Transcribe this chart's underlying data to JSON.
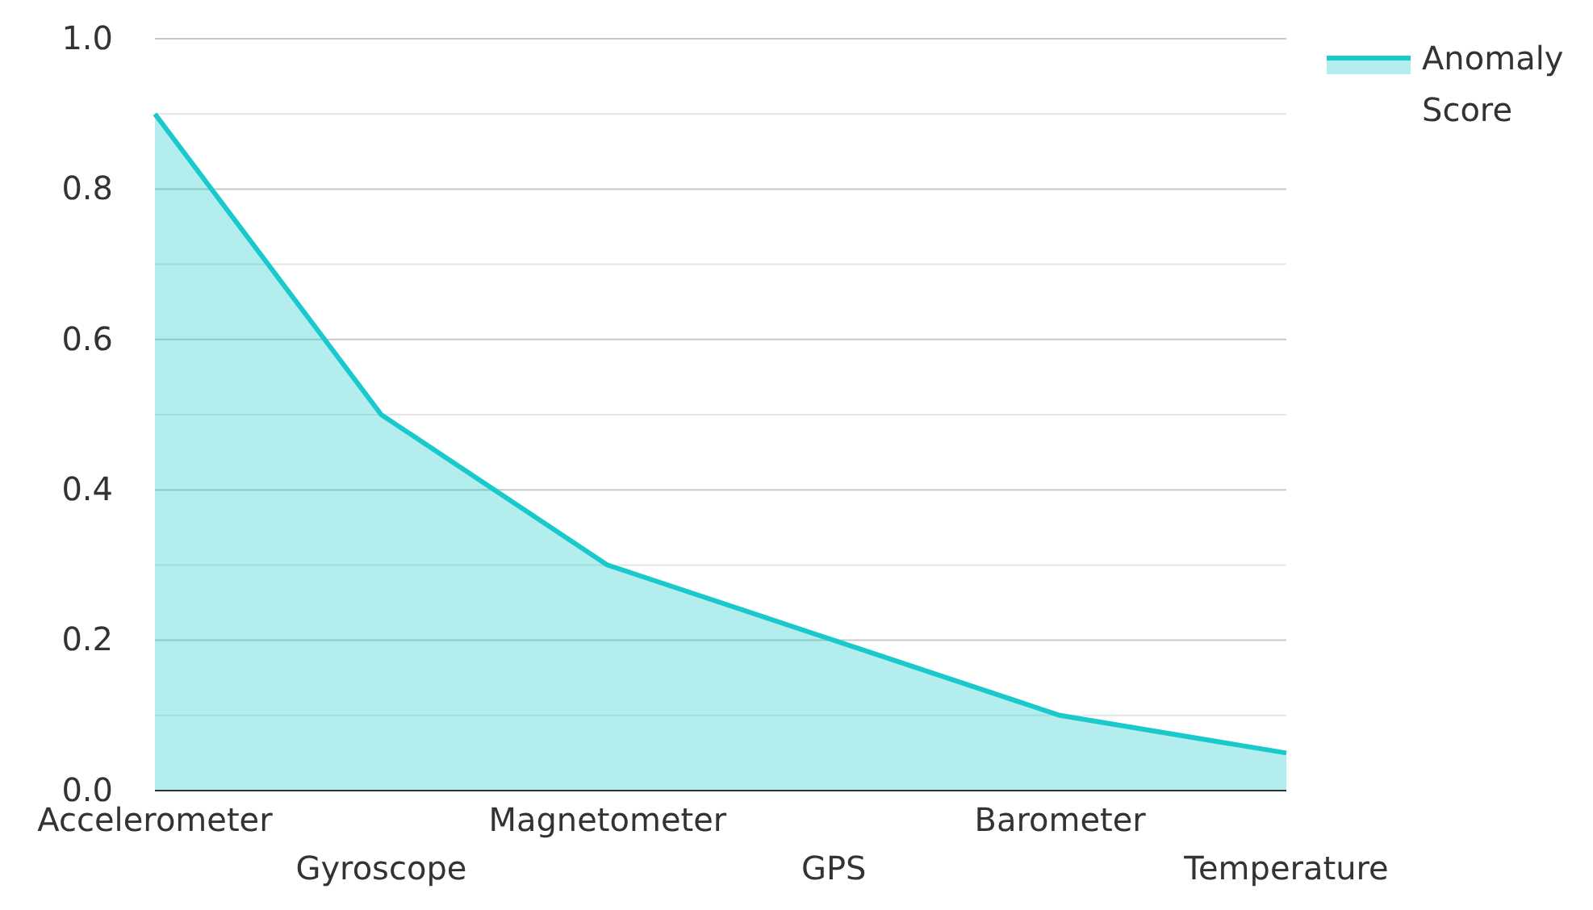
{
  "chart_data": {
    "type": "area",
    "categories": [
      "Accelerometer",
      "Gyroscope",
      "Magnetometer",
      "GPS",
      "Barometer",
      "Temperature"
    ],
    "series": [
      {
        "name": "Anomaly Score",
        "color": "#19c9cc",
        "values": [
          0.9,
          0.5,
          0.3,
          0.2,
          0.1,
          0.05
        ]
      }
    ],
    "ylim": [
      0,
      1
    ],
    "yticks": [
      {
        "value": 0,
        "label": "0.0"
      },
      {
        "value": 0.1,
        "label": null
      },
      0.2,
      {
        "value": 0.3,
        "label": null
      },
      0.4,
      {
        "value": 0.5,
        "label": null
      },
      0.6,
      {
        "value": 0.7,
        "label": null
      },
      0.8,
      {
        "value": 0.9,
        "label": null
      },
      {
        "value": 1,
        "label": "1.0"
      }
    ],
    "grid": "y",
    "legend": "top right"
  }
}
